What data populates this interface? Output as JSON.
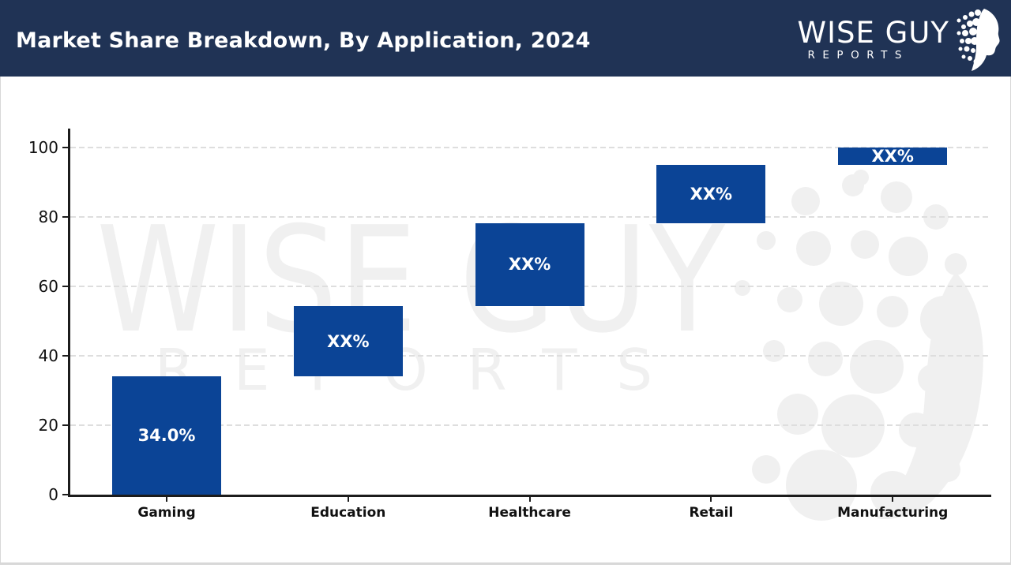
{
  "header": {
    "title": "Market Share Breakdown, By Application, 2024",
    "brand": {
      "line1": "WISE GUY",
      "line2": "REPORTS"
    }
  },
  "watermark": {
    "line1": "WISE GUY",
    "line2": "REPORTS"
  },
  "chart_data": {
    "type": "bar",
    "subtype": "waterfall",
    "title": "Market Share Breakdown, By Application, 2024",
    "categories": [
      "Gaming",
      "Education",
      "Healthcare",
      "Retail",
      "Manufacturing"
    ],
    "series": [
      {
        "name": "Market Share %",
        "segments": [
          {
            "category": "Gaming",
            "start": 0,
            "end": 34,
            "label": "34.0%"
          },
          {
            "category": "Education",
            "start": 34,
            "end": 54.3,
            "label": "XX%"
          },
          {
            "category": "Healthcare",
            "start": 54.3,
            "end": 78.2,
            "label": "XX%"
          },
          {
            "category": "Retail",
            "start": 78.2,
            "end": 95,
            "label": "XX%"
          },
          {
            "category": "Manufacturing",
            "start": 95,
            "end": 100,
            "label": "XX%"
          }
        ]
      }
    ],
    "yticks": [
      0,
      20,
      40,
      60,
      80,
      100
    ],
    "ylim": [
      0,
      104.5
    ],
    "xlabel": "",
    "ylabel": "",
    "grid": "horizontal-dashed",
    "legend": "none",
    "bar_color": "#0b4496",
    "bar_label_color": "#ffffff"
  },
  "colors": {
    "header_bg": "#203355",
    "bar": "#0b4496",
    "grid": "#dedede",
    "axis": "#1c1c1c",
    "watermark": "#f0f0f0",
    "footer_line": "#d8d8d8"
  }
}
